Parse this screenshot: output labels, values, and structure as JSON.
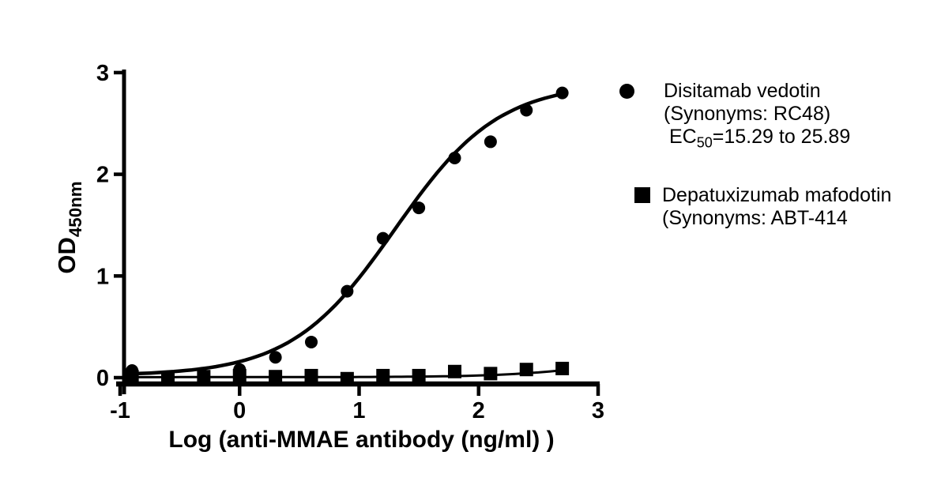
{
  "colors": {
    "foreground": "#000000",
    "background": "#ffffff"
  },
  "chart_data": {
    "type": "scatter",
    "x_label": "Log (anti-MMAE antibody (ng/ml) )",
    "y_label_prefix": "OD",
    "y_label_subscript": "450nm",
    "xlim": [
      -1,
      3
    ],
    "ylim": [
      0,
      3
    ],
    "x_ticks": [
      -1,
      0,
      1,
      2,
      3
    ],
    "x_tick_labels": [
      "-1",
      "0",
      "1",
      "2",
      "3"
    ],
    "y_ticks": [
      0,
      1,
      2,
      3
    ],
    "y_tick_labels": [
      "0",
      "1",
      "2",
      "3"
    ],
    "grid": false,
    "legend_position": "right",
    "x": [
      -0.9,
      -0.6,
      -0.3,
      0.0,
      0.3,
      0.6,
      0.9,
      1.2,
      1.5,
      1.8,
      2.1,
      2.4,
      2.7
    ],
    "series": [
      {
        "name": "Disitamab vedotin (Synonyms: RC48)",
        "marker": "circle",
        "color": "#000000",
        "values": [
          0.07,
          0.01,
          0.02,
          0.08,
          0.2,
          0.35,
          0.85,
          1.37,
          1.67,
          2.16,
          2.32,
          2.63,
          2.8
        ],
        "fit": {
          "type": "4PL",
          "bottom": 0.02,
          "top": 2.9,
          "logEC50": 1.3,
          "hill": 1.0
        }
      },
      {
        "name": "Depatuxizumab mafodotin (Synonyms: ABT-414)",
        "marker": "square",
        "color": "#000000",
        "values": [
          0.01,
          0.0,
          0.01,
          0.02,
          0.01,
          0.02,
          -0.01,
          0.02,
          0.02,
          0.06,
          0.04,
          0.08,
          0.09
        ],
        "fit": {
          "type": "4PL",
          "bottom": 0.005,
          "top": 0.345,
          "logEC50": 3.3,
          "hill": 1.0
        }
      }
    ]
  },
  "legend": {
    "items": [
      {
        "marker": "circle-marker",
        "line1": "Disitamab vedotin",
        "line2": "(Synonyms: RC48)",
        "ec50_prefix": "EC",
        "ec50_sub": "50",
        "ec50_rest": "=15.29 to 25.89"
      },
      {
        "marker": "square-marker",
        "line1": "Depatuxizumab mafodotin",
        "line2": "(Synonyms: ABT-414"
      }
    ]
  }
}
